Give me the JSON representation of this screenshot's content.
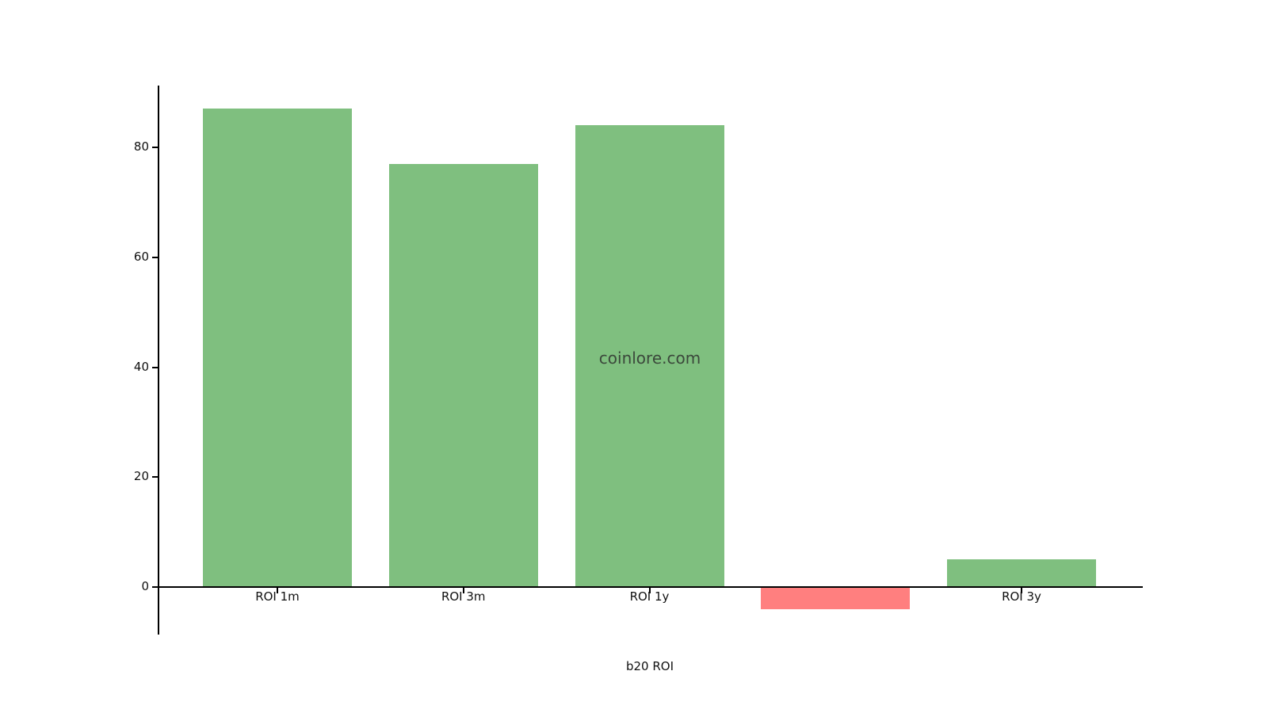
{
  "watermark": {
    "text": "coinlore.com"
  },
  "caption": {
    "text": "b20 ROI"
  },
  "colors": {
    "positive_bar": "#7fbf7f",
    "negative_bar": "#ff7f7f",
    "axis": "#000000",
    "tick_text": "#111111",
    "watermark_text": "rgba(43,43,43,0.8)"
  },
  "chart_data": {
    "type": "bar",
    "title": "b20 ROI",
    "categories": [
      "ROI 1m",
      "ROI 3m",
      "ROI 1y",
      "",
      "ROI 3y"
    ],
    "values": [
      87,
      77,
      84,
      -4,
      5
    ],
    "bar_colors": [
      "#7fbf7f",
      "#7fbf7f",
      "#7fbf7f",
      "#ff7f7f",
      "#7fbf7f"
    ],
    "yticks": [
      0,
      20,
      40,
      60,
      80
    ],
    "ylim": [
      -8.7,
      91.2
    ],
    "xlabel": "",
    "ylabel": "",
    "grid": false,
    "legend": false,
    "watermark": "coinlore.com"
  }
}
